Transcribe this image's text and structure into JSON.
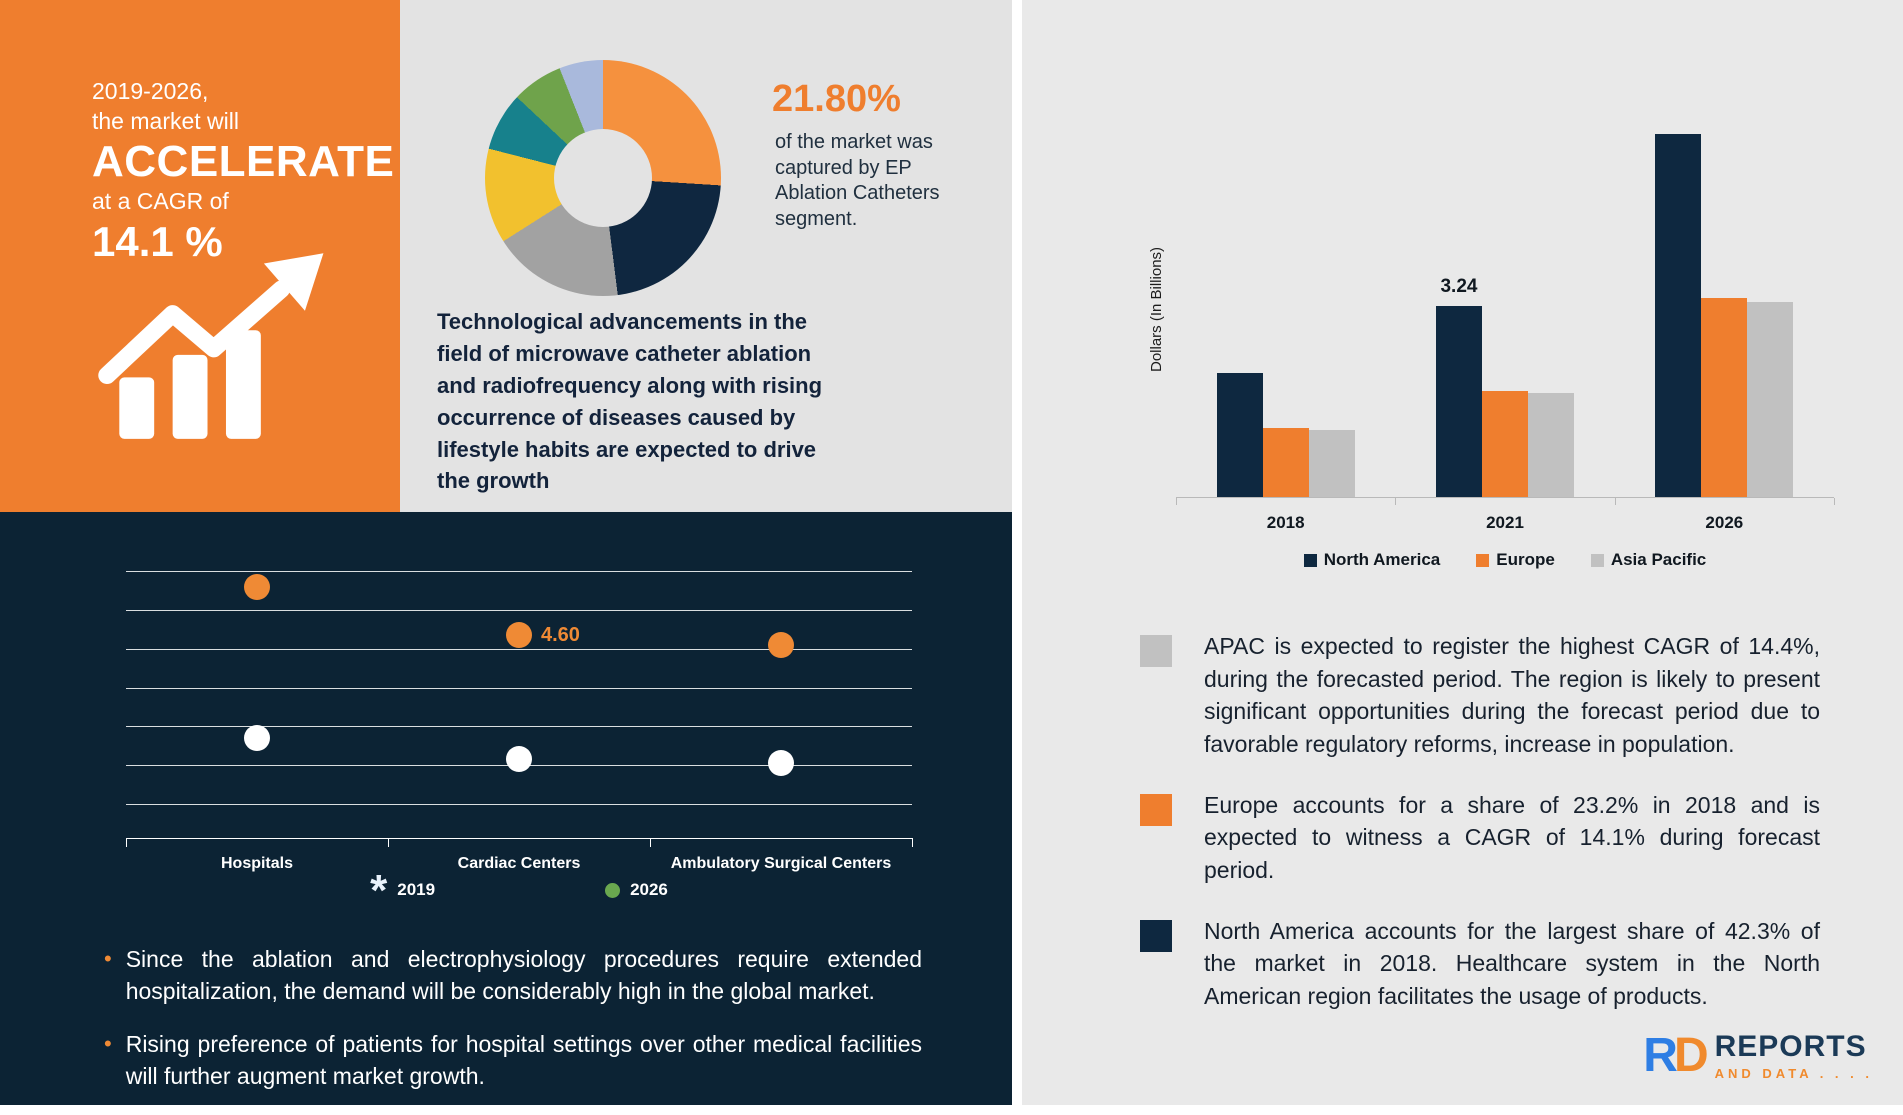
{
  "colors": {
    "orange": "#ef7e2e",
    "navy_panel": "#0c2334",
    "bar_navy": "#0e2840",
    "donut_panel_bg": "#e3e3e3",
    "right_panel_bg": "#e9e9e9",
    "green": "#6aa84f",
    "white": "#ffffff"
  },
  "cagr_panel": {
    "line1": "2019-2026,",
    "line2": "the market will",
    "headline": "ACCELERATE",
    "line3": "at a CAGR of",
    "cagr_value": "14.1 %"
  },
  "segment_panel": {
    "highlight_value": "21.80%",
    "highlight_text": "of the market was captured by EP Ablation Catheters segment.",
    "body_text": "Technological advancements in the field of microwave catheter ablation and radiofrequency along with rising occurrence of diseases caused by lifestyle habits are expected to drive the growth"
  },
  "facility_panel": {
    "bullets": [
      "Since the ablation and electrophysiology procedures require extended hospitalization, the demand  will be considerably high in the global market.",
      "Rising preference of patients for hospital settings over other medical facilities will further augment market growth."
    ]
  },
  "regional_panel": {
    "insights": [
      {
        "color": "#c1c1c1",
        "text": "APAC is expected to register the highest CAGR of 14.4%, during the forecasted period. The region is likely to present significant opportunities during the forecast period due to favorable regulatory reforms, increase in population."
      },
      {
        "color": "#ef7e2e",
        "text": "Europe accounts for a share of 23.2% in 2018 and is expected to witness a CAGR of 14.1% during forecast period."
      },
      {
        "color": "#0e2840",
        "text": "North America accounts for the largest share of 42.3% of the market in 2018. Healthcare system in the North American region facilitates the usage of  products."
      }
    ]
  },
  "logo": {
    "mark_r": "R",
    "mark_d": "D",
    "reports": "REPORTS",
    "and_data": "AND DATA . . . ."
  },
  "chart_data": [
    {
      "id": "donut",
      "type": "pie",
      "annotation": "21.80% of the market was captured by EP Ablation Catheters segment.",
      "segments": [
        {
          "color": "#f5913e",
          "value": 26
        },
        {
          "color": "#0f2740",
          "value": 22
        },
        {
          "color": "#a2a2a2",
          "value": 18
        },
        {
          "color": "#f2c12e",
          "value": 13
        },
        {
          "color": "#17818c",
          "value": 8
        },
        {
          "color": "#6fa34b",
          "value": 7
        },
        {
          "color": "#a9b9dc",
          "value": 6
        }
      ]
    },
    {
      "id": "dotplot",
      "type": "scatter",
      "categories": [
        "Hospitals",
        "Cardiac Centers",
        "Ambulatory Surgical Centers"
      ],
      "series": [
        {
          "name": "2019",
          "color": "#ffffff",
          "values": [
            1.95,
            1.4,
            1.3
          ]
        },
        {
          "name": "2026",
          "color": "#ef8a35",
          "values": [
            5.85,
            4.6,
            4.35
          ]
        }
      ],
      "legend": [
        {
          "label": "2019",
          "marker": "asterisk",
          "color": "#e9f2fb"
        },
        {
          "label": "2026",
          "marker": "dot",
          "color": "#6aa84f"
        }
      ],
      "ylim": [
        0.25,
        6.25
      ],
      "gridlines": 7,
      "grid": true,
      "data_label": {
        "series": "2026",
        "category": "Cardiac Centers",
        "text": "4.60"
      }
    },
    {
      "id": "bars",
      "type": "bar",
      "ylabel": "Dollars (In Billions)",
      "categories": [
        "2018",
        "2021",
        "2026"
      ],
      "series": [
        {
          "name": "North America",
          "color": "#0e2840",
          "values": [
            2.1,
            3.24,
            6.15
          ]
        },
        {
          "name": "Europe",
          "color": "#ef7e2e",
          "values": [
            1.17,
            1.8,
            3.36
          ]
        },
        {
          "name": "Asia Pacific",
          "color": "#c1c1c1",
          "values": [
            1.14,
            1.76,
            3.3
          ]
        }
      ],
      "ylim": [
        0,
        6.6
      ],
      "grid": false,
      "legend_position": "bottom",
      "data_label": {
        "series": "North America",
        "category": "2021",
        "text": "3.24"
      }
    }
  ]
}
